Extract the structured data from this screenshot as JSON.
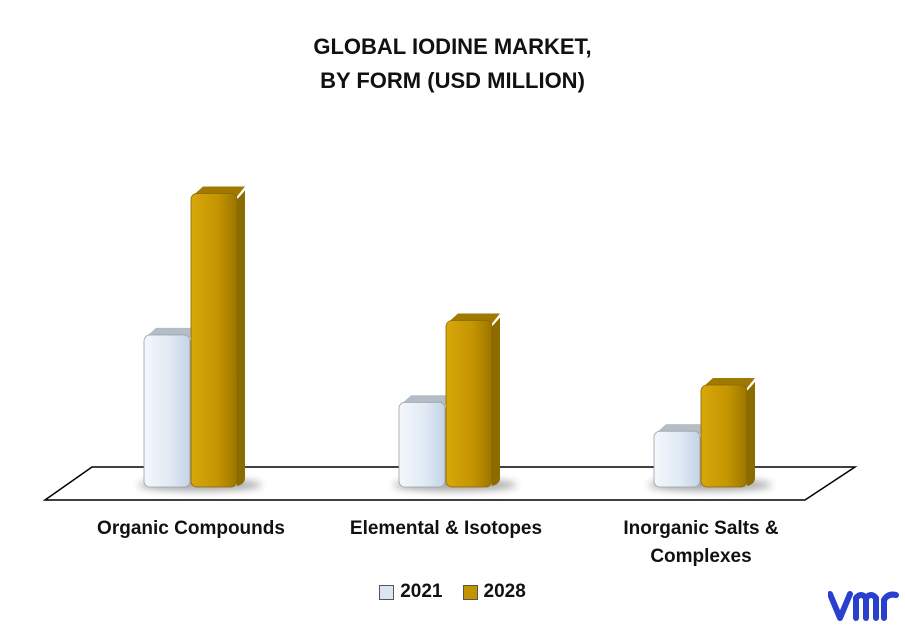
{
  "chart_data": {
    "type": "bar",
    "title_lines": [
      "GLOBAL IODINE MARKET,",
      "BY FORM (USD MILLION)"
    ],
    "categories": [
      "Organic Compounds",
      "Elemental & Isotopes",
      "Inorganic Salts & Complexes"
    ],
    "category_label_lines": [
      [
        "Organic Compounds"
      ],
      [
        "Elemental & Isotopes"
      ],
      [
        "Inorganic Salts &",
        "Complexes"
      ]
    ],
    "series": [
      {
        "name": "2021",
        "values": [
          158,
          88,
          58
        ],
        "color": "#dce6f2"
      },
      {
        "name": "2028",
        "values": [
          305,
          173,
          106
        ],
        "color": "#c39400"
      }
    ],
    "ylim": [
      0,
      320
    ],
    "grid": false,
    "legend_position": "bottom"
  },
  "logo": {
    "text": "vmr",
    "color": "#2b3fcf"
  }
}
